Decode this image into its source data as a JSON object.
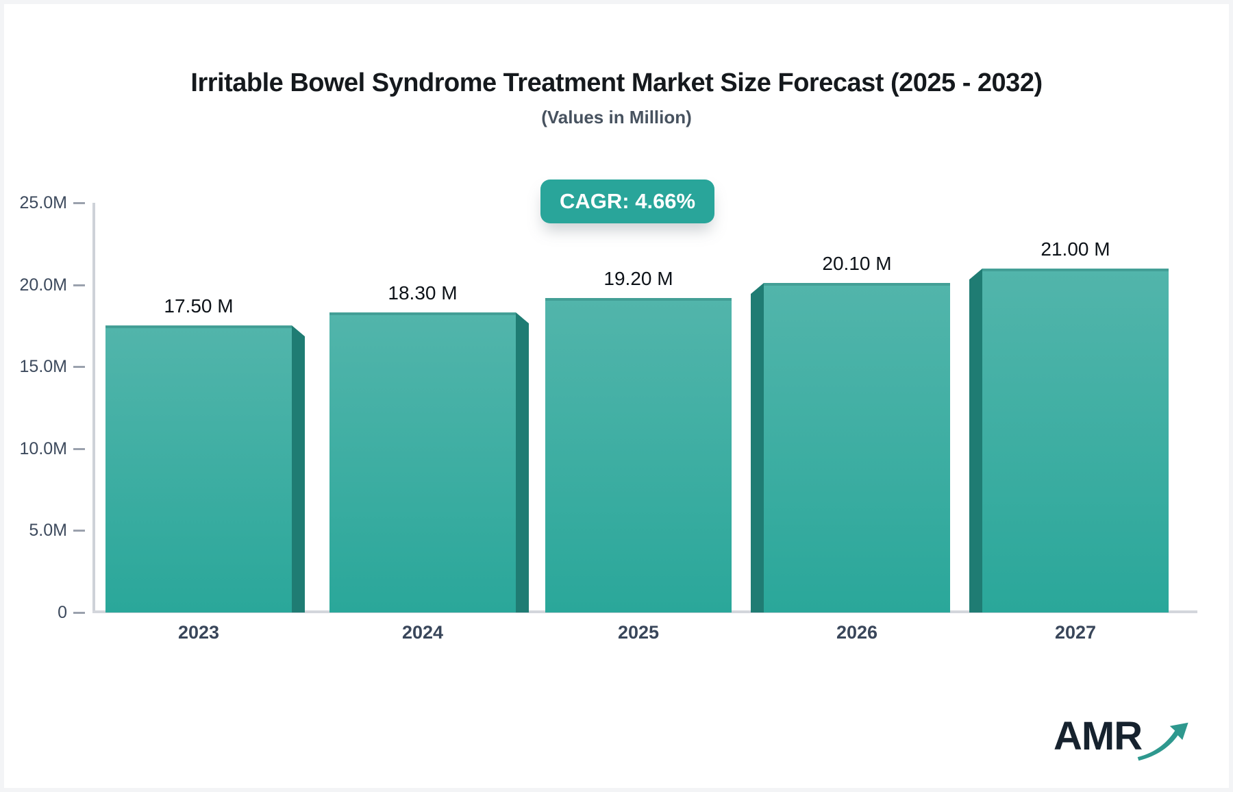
{
  "header": {
    "title": "Irritable Bowel Syndrome Treatment Market Size Forecast (2025 - 2032)",
    "subtitle": "(Values in Million)"
  },
  "badge": {
    "label": "CAGR: 4.66%"
  },
  "chart_data": {
    "type": "bar",
    "title": "Irritable Bowel Syndrome Treatment Market Size Forecast (2025 - 2032)",
    "subtitle": "(Values in Million)",
    "unit": "Million",
    "categories": [
      "2023",
      "2024",
      "2025",
      "2026",
      "2027"
    ],
    "values": [
      17.5,
      18.3,
      19.2,
      20.1,
      21.0
    ],
    "value_labels": [
      "17.50 M",
      "18.30 M",
      "19.20 M",
      "20.10 M",
      "21.00 M"
    ],
    "cagr_label": "CAGR: 4.66%",
    "ylim": [
      0,
      25
    ],
    "yticks": [
      "25.0M",
      "20.0M",
      "15.0M",
      "10.0M",
      "5.0M",
      "0"
    ],
    "grid": "off",
    "legend": "none",
    "colors": {
      "bar_top": "#52b5ab",
      "bar_bottom": "#2aa79a",
      "bar_side": "#1f7c73",
      "accent": "#29a59a",
      "axis_line": "#d3d6dc",
      "label_text": "#3d4a5d"
    }
  },
  "logo": {
    "text": "AMR"
  }
}
